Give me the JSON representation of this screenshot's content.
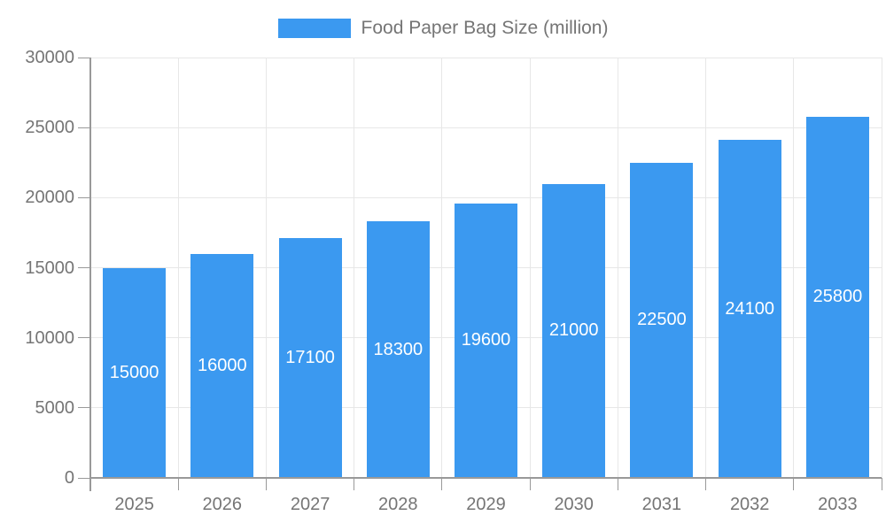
{
  "chart_data": {
    "type": "bar",
    "title": "Food Paper Bag Size (million)",
    "categories": [
      "2025",
      "2026",
      "2027",
      "2028",
      "2029",
      "2030",
      "2031",
      "2032",
      "2033"
    ],
    "values": [
      15000,
      16000,
      17100,
      18300,
      19600,
      21000,
      22500,
      24100,
      25800
    ],
    "series_name": "Food Paper Bag Size (million)",
    "xlabel": "",
    "ylabel": "",
    "ylim": [
      0,
      30000
    ],
    "yticks": [
      0,
      5000,
      10000,
      15000,
      20000,
      25000,
      30000
    ],
    "grid": true,
    "legend_position": "top-center",
    "bar_color": "#3B99F0",
    "bar_label_color": "#ffffff",
    "axis_text_color": "#757575",
    "grid_color": "#e7e7e7",
    "axis_line_color": "#999999"
  }
}
